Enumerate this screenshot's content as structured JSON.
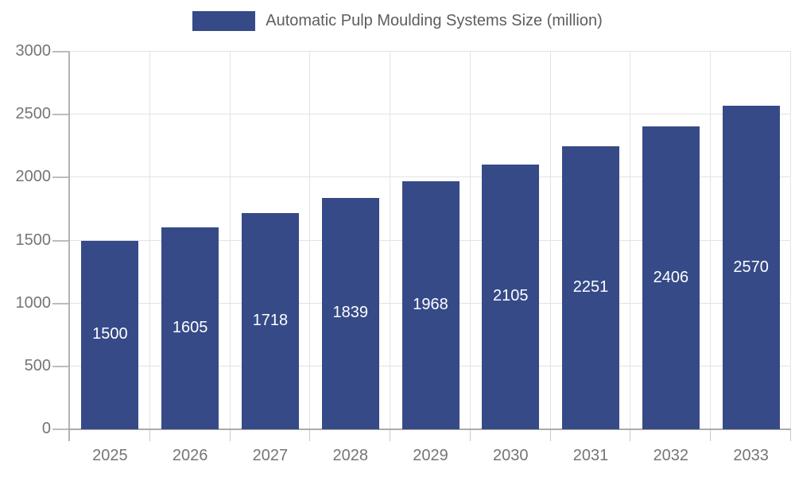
{
  "chart_data": {
    "type": "bar",
    "title": "Automatic Pulp Moulding Systems Size (million)",
    "categories": [
      "2025",
      "2026",
      "2027",
      "2028",
      "2029",
      "2030",
      "2031",
      "2032",
      "2033"
    ],
    "values": [
      1500,
      1605,
      1718,
      1839,
      1968,
      2105,
      2251,
      2406,
      2570
    ],
    "xlabel": "",
    "ylabel": "",
    "ylim": [
      0,
      3000
    ],
    "yticks": [
      0,
      500,
      1000,
      1500,
      2000,
      2500,
      3000
    ],
    "legend_entries": [
      "Automatic Pulp Moulding Systems Size (million)"
    ],
    "legend_position": "top-center",
    "grid": true,
    "value_labels": "inside-center-white",
    "colors": {
      "bar": "#364a88",
      "value_label": "#ffffff",
      "axis_label": "#757575",
      "legend_text": "#5d5d5d",
      "gridline": "#e2e2e2",
      "axis_line": "#ababab"
    }
  }
}
